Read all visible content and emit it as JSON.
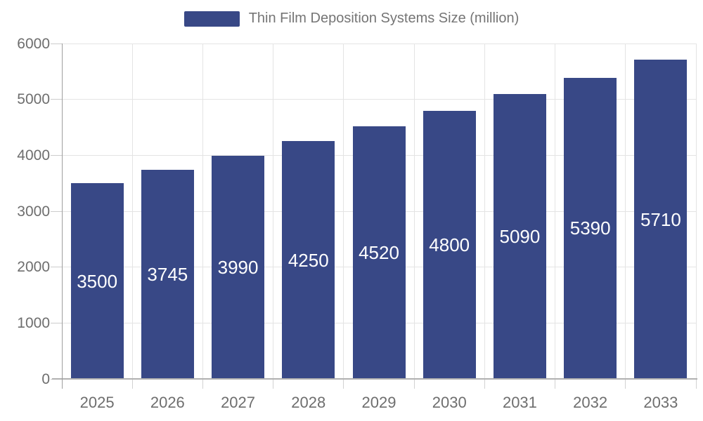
{
  "chart_data": {
    "type": "bar",
    "title": "",
    "legend": "Thin Film Deposition Systems Size (million)",
    "categories": [
      "2025",
      "2026",
      "2027",
      "2028",
      "2029",
      "2030",
      "2031",
      "2032",
      "2033"
    ],
    "values": [
      3500,
      3745,
      3990,
      4250,
      4520,
      4800,
      5090,
      5390,
      5710
    ],
    "xlabel": "",
    "ylabel": "",
    "ylim": [
      0,
      6000
    ],
    "yticks": [
      0,
      1000,
      2000,
      3000,
      4000,
      5000,
      6000
    ],
    "grid": "horizontal and vertical light gridlines",
    "legend_position": "top-center",
    "value_labels": "centered inside bars",
    "colors": {
      "bar": "#384886",
      "grid": "#e4e4e4",
      "axis": "#a3a3a3",
      "tick_text": "#6e6e6e",
      "legend_text": "#757575",
      "value_text": "#ffffff",
      "background": "#ffffff"
    }
  }
}
